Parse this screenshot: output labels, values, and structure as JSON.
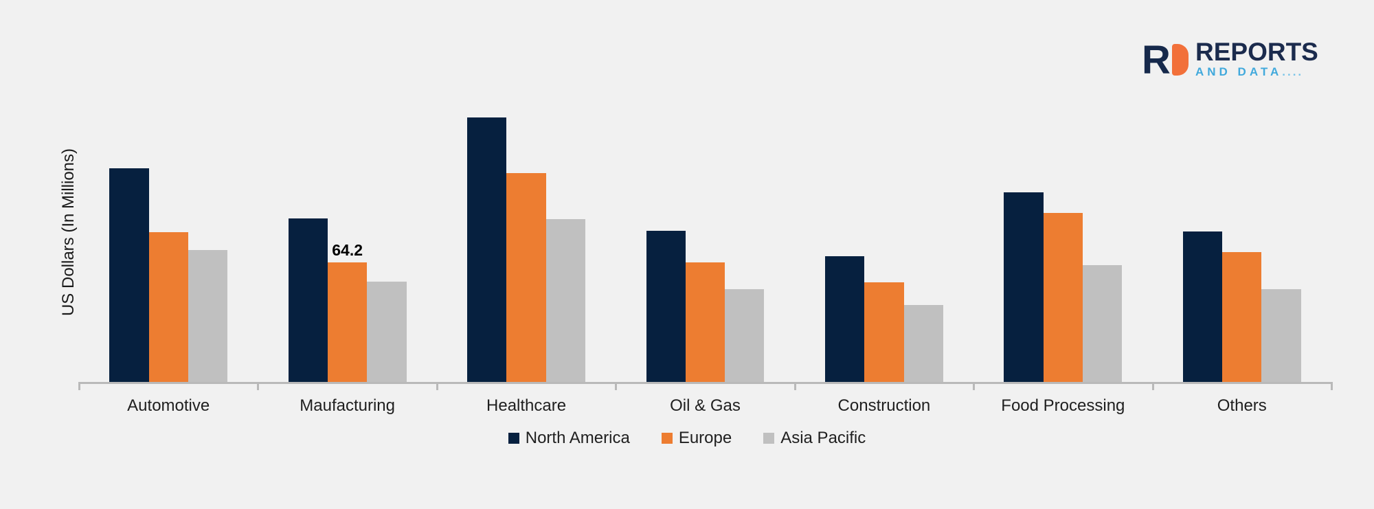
{
  "logo": {
    "icon_letter": "R",
    "title": "REPORTS",
    "subtitle": "AND DATA",
    "dots": "....",
    "title_color": "#1b2b4d",
    "subtitle_color": "#41a9dc",
    "icon_orange": "#f2703a"
  },
  "chart_data": {
    "type": "bar",
    "title": "",
    "xlabel": "",
    "ylabel": "US Dollars (In Millions)",
    "ylim": [
      0,
      150
    ],
    "grid": false,
    "legend_position": "bottom",
    "axis_color": "#b9b9b9",
    "background": "#f1f1f1",
    "categories": [
      "Automotive",
      "Maufacturing",
      "Healthcare",
      "Oil & Gas",
      "Construction",
      "Food Processing",
      "Others"
    ],
    "series": [
      {
        "name": "North America",
        "color": "#06203f",
        "values": [
          115,
          88,
          142.5,
          81.5,
          67.5,
          102,
          81
        ]
      },
      {
        "name": "Europe",
        "color": "#ed7d31",
        "values": [
          80.5,
          64.2,
          112.5,
          64.2,
          53.5,
          91,
          70
        ]
      },
      {
        "name": "Asia Pacific",
        "color": "#c0c0c0",
        "values": [
          71,
          54,
          87.5,
          50,
          41.5,
          63,
          50
        ]
      }
    ],
    "data_labels": [
      {
        "series_index": 1,
        "category_index": 1,
        "text": "64.2"
      }
    ]
  }
}
